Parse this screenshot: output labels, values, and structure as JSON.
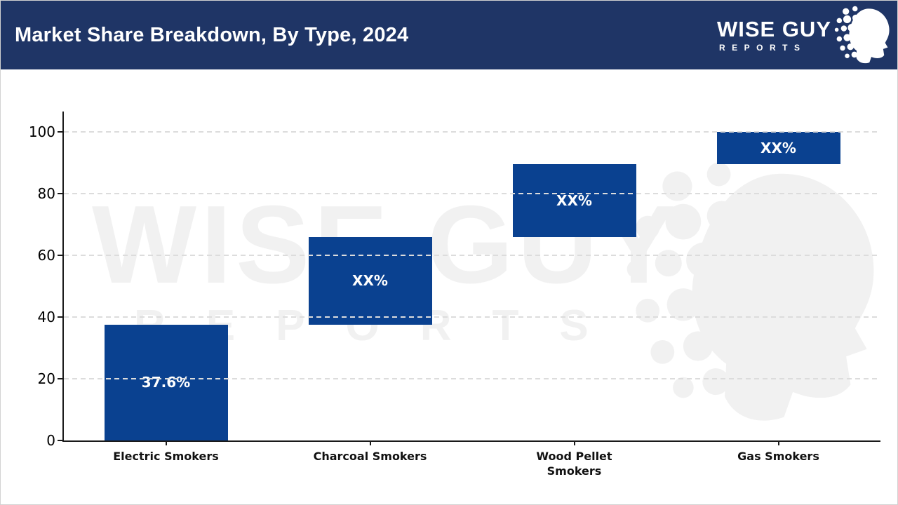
{
  "header": {
    "title": "Market Share Breakdown, By Type, 2024",
    "bg_color": "#1f3566",
    "logo": {
      "line1": "WISE GUY",
      "line2": "REPORTS"
    }
  },
  "watermark": {
    "line1": "WISE GUY",
    "line2": "REPORTS"
  },
  "chart_data": {
    "type": "bar",
    "subtype": "waterfall",
    "title": "Market Share Breakdown, By Type, 2024",
    "categories": [
      "Electric Smokers",
      "Charcoal Smokers",
      "Wood Pellet\nSmokers",
      "Gas Smokers"
    ],
    "segments": [
      {
        "category": "Electric Smokers",
        "start": 0,
        "end": 37.6,
        "label": "37.6%"
      },
      {
        "category": "Charcoal Smokers",
        "start": 37.6,
        "end": 66,
        "label": "XX%"
      },
      {
        "category": "Wood Pellet Smokers",
        "start": 66,
        "end": 89.5,
        "label": "XX%"
      },
      {
        "category": "Gas Smokers",
        "start": 89.5,
        "end": 100,
        "label": "XX%"
      }
    ],
    "ylim": [
      0,
      106
    ],
    "yticks": [
      0,
      20,
      40,
      60,
      80,
      100
    ],
    "xlabel": "",
    "ylabel": "",
    "grid": true,
    "grid_style": "dashed",
    "legend": "none",
    "bar_color": "#0a4190",
    "bar_label_color": "#ffffff",
    "axis_color": "#1a1a1a",
    "gridline_color": "#dcdcdc"
  }
}
